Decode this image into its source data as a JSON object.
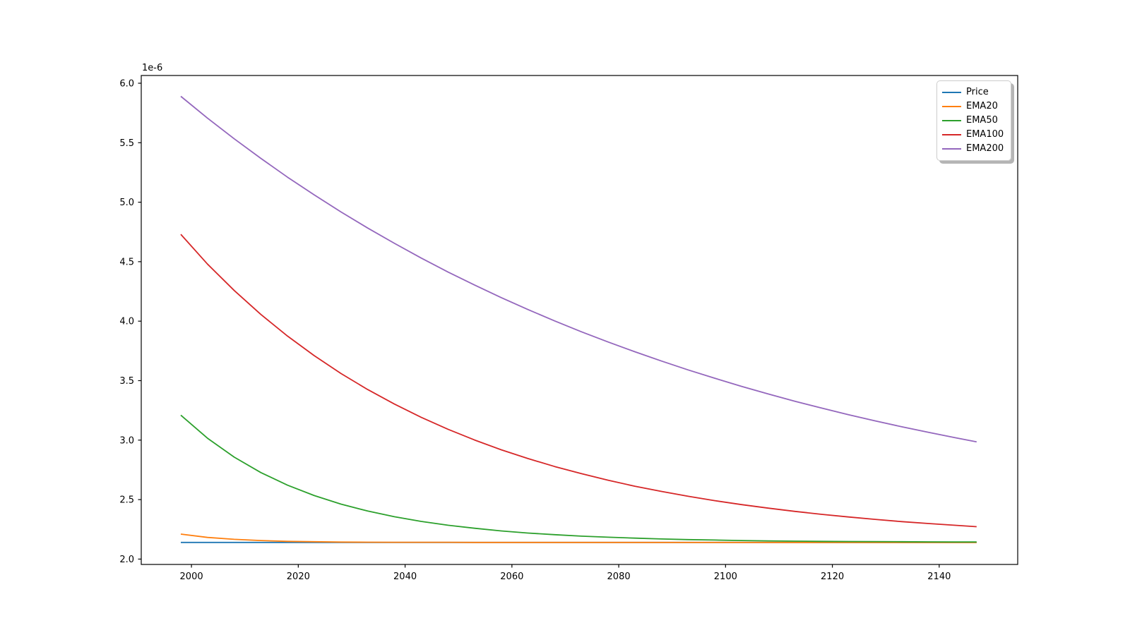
{
  "figure": {
    "background": "#ffffff",
    "spine_color": "#000000",
    "tick_color": "#000000"
  },
  "chart_data": {
    "type": "line",
    "title": "",
    "xlabel": "",
    "ylabel": "",
    "y_offset_label": "1e-6",
    "y_unit_scale": "1e-6",
    "grid": false,
    "legend_position": "upper right",
    "xlim": [
      1990.6,
      2154.7
    ],
    "ylim": [
      1.955,
      6.065
    ],
    "x_tick_values": [
      2000,
      2020,
      2040,
      2060,
      2080,
      2100,
      2120,
      2140
    ],
    "x_tick_labels": [
      "2000",
      "2020",
      "2040",
      "2060",
      "2080",
      "2100",
      "2120",
      "2140"
    ],
    "y_tick_values": [
      2.0,
      2.5,
      3.0,
      3.5,
      4.0,
      4.5,
      5.0,
      5.5,
      6.0
    ],
    "y_tick_labels": [
      "2.0",
      "2.5",
      "3.0",
      "3.5",
      "4.0",
      "4.5",
      "5.0",
      "5.5",
      "6.0"
    ],
    "x": [
      1998,
      2003,
      2008,
      2013,
      2018,
      2023,
      2028,
      2033,
      2038,
      2043,
      2048,
      2053,
      2058,
      2063,
      2068,
      2073,
      2078,
      2083,
      2088,
      2093,
      2098,
      2103,
      2108,
      2113,
      2118,
      2123,
      2128,
      2133,
      2138,
      2143,
      2147
    ],
    "series": [
      {
        "name": "Price",
        "color": "#1f77b4",
        "values": [
          2.14,
          2.14,
          2.14,
          2.14,
          2.14,
          2.14,
          2.14,
          2.14,
          2.14,
          2.14,
          2.14,
          2.14,
          2.14,
          2.14,
          2.14,
          2.14,
          2.14,
          2.14,
          2.14,
          2.14,
          2.14,
          2.14,
          2.14,
          2.14,
          2.14,
          2.14,
          2.14,
          2.14,
          2.14,
          2.14,
          2.14
        ]
      },
      {
        "name": "EMA20",
        "color": "#ff7f0e",
        "values": [
          2.21,
          2.182,
          2.166,
          2.156,
          2.149,
          2.146,
          2.143,
          2.142,
          2.141,
          2.141,
          2.141,
          2.14,
          2.14,
          2.14,
          2.14,
          2.14,
          2.14,
          2.14,
          2.14,
          2.14,
          2.14,
          2.14,
          2.14,
          2.14,
          2.14,
          2.14,
          2.14,
          2.14,
          2.14,
          2.14,
          2.14
        ]
      },
      {
        "name": "EMA50",
        "color": "#2ca02c",
        "values": [
          3.21,
          3.016,
          2.857,
          2.727,
          2.621,
          2.534,
          2.462,
          2.404,
          2.356,
          2.317,
          2.285,
          2.259,
          2.237,
          2.219,
          2.205,
          2.193,
          2.184,
          2.176,
          2.169,
          2.164,
          2.16,
          2.156,
          2.153,
          2.151,
          2.149,
          2.148,
          2.147,
          2.146,
          2.145,
          2.144,
          2.144
        ]
      },
      {
        "name": "EMA100",
        "color": "#d62728",
        "values": [
          4.73,
          4.48,
          4.258,
          4.056,
          3.874,
          3.71,
          3.56,
          3.425,
          3.303,
          3.192,
          3.092,
          3.001,
          2.919,
          2.845,
          2.778,
          2.718,
          2.663,
          2.613,
          2.569,
          2.528,
          2.491,
          2.458,
          2.428,
          2.401,
          2.376,
          2.354,
          2.334,
          2.315,
          2.299,
          2.284,
          2.272
        ]
      },
      {
        "name": "EMA200",
        "color": "#9467bd",
        "values": [
          5.89,
          5.707,
          5.533,
          5.368,
          5.21,
          5.061,
          4.918,
          4.783,
          4.654,
          4.531,
          4.414,
          4.304,
          4.198,
          4.098,
          4.002,
          3.911,
          3.825,
          3.743,
          3.665,
          3.59,
          3.52,
          3.452,
          3.388,
          3.327,
          3.269,
          3.214,
          3.162,
          3.112,
          3.065,
          3.02,
          2.985
        ]
      }
    ]
  }
}
